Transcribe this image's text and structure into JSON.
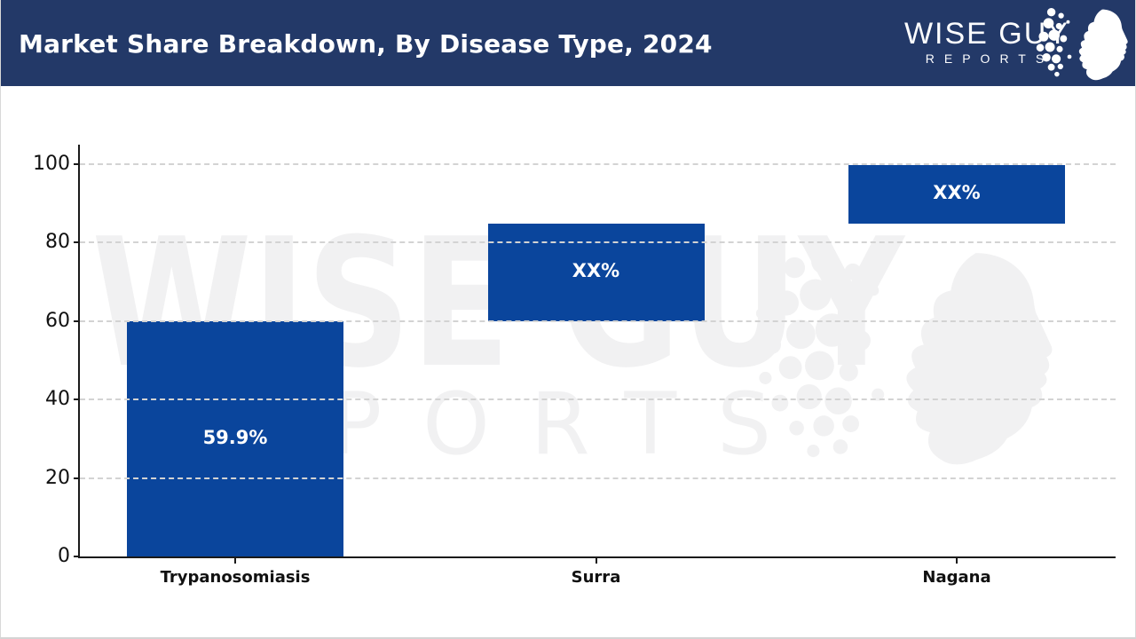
{
  "header": {
    "title": "Market Share Breakdown, By Disease Type, 2024",
    "logo": {
      "line1": "WISE GUY",
      "line2": "REPORTS"
    }
  },
  "watermark": {
    "line1": "WISE GUY",
    "line2": "REPORTS"
  },
  "colors": {
    "header_bg": "#233968",
    "bar": "#0a459c",
    "grid": "#d3d3d3",
    "axis": "#1a1a1a",
    "watermark": "#f1f1f2",
    "bar_label_text": "#ffffff"
  },
  "chart_data": {
    "type": "bar",
    "subtype": "stacked-waterfall-segments",
    "title": "Market Share Breakdown, By Disease Type, 2024",
    "categories": [
      "Trypanosomiasis",
      "Surra",
      "Nagana"
    ],
    "segments": [
      {
        "category": "Trypanosomiasis",
        "from": 0,
        "to": 59.9,
        "label": "59.9%"
      },
      {
        "category": "Surra",
        "from": 59.9,
        "to": 84.9,
        "label": "XX%"
      },
      {
        "category": "Nagana",
        "from": 84.9,
        "to": 99.8,
        "label": "XX%"
      }
    ],
    "xlabel": "",
    "ylabel": "",
    "yticks": [
      0,
      20,
      40,
      60,
      80,
      100
    ],
    "ylim": [
      0,
      106
    ],
    "grid": "horizontal-dashed",
    "legend": "none"
  }
}
